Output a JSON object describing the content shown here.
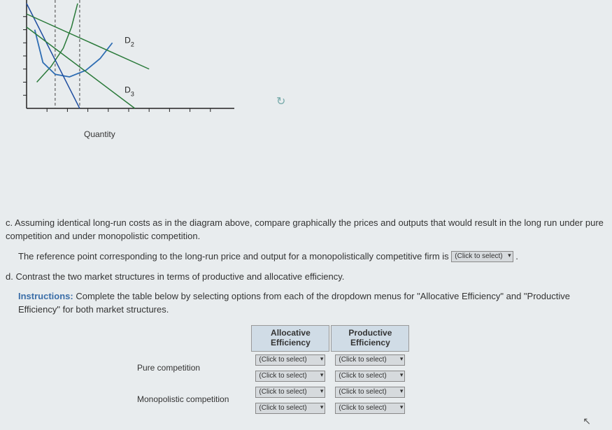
{
  "chart": {
    "type": "line",
    "x_axis_label": "Quantity",
    "xlim": [
      0,
      10
    ],
    "ylim": [
      0,
      8
    ],
    "axis_color": "#222222",
    "background_color": "#e8ecee",
    "tick_count_x": 9,
    "tick_count_y": 7,
    "curves": [
      {
        "name": "MC_rising",
        "color": "#2a7a3a",
        "width": 1.5,
        "points": [
          [
            0.5,
            2.0
          ],
          [
            1.2,
            3.2
          ],
          [
            1.8,
            4.6
          ],
          [
            2.2,
            6.2
          ],
          [
            2.5,
            8.0
          ]
        ]
      },
      {
        "name": "ATC_U",
        "color": "#2e6db3",
        "width": 1.8,
        "points": [
          [
            0.4,
            6.0
          ],
          [
            0.8,
            3.5
          ],
          [
            1.4,
            2.6
          ],
          [
            2.1,
            2.4
          ],
          [
            2.9,
            2.9
          ],
          [
            3.6,
            3.8
          ],
          [
            4.2,
            5.0
          ]
        ]
      },
      {
        "name": "D1",
        "color": "#1f4da0",
        "width": 1.5,
        "points": [
          [
            0.0,
            8.0
          ],
          [
            2.6,
            0.0
          ]
        ]
      },
      {
        "name": "D2",
        "color": "#2a7a3a",
        "width": 1.5,
        "label": "D",
        "sub": "2",
        "label_at": [
          4.8,
          5.0
        ],
        "points": [
          [
            0.0,
            7.2
          ],
          [
            6.0,
            3.0
          ]
        ]
      },
      {
        "name": "D3",
        "color": "#2a7a3a",
        "width": 1.5,
        "label": "D",
        "sub": "3",
        "label_at": [
          4.8,
          1.2
        ],
        "points": [
          [
            0.0,
            6.2
          ],
          [
            5.3,
            0.0
          ]
        ]
      }
    ],
    "dashed_verticals": [
      {
        "x": 1.4,
        "color": "#444444"
      },
      {
        "x": 2.6,
        "color": "#444444"
      }
    ],
    "label_fontsize": 12
  },
  "question_c": {
    "text_1": "c. Assuming identical long-run costs as in the diagram above, compare graphically the prices and outputs that would result in the long run under pure competition and under monopolistic competition.",
    "text_2_pre": "The reference point corresponding to the long-run price and output for a monopolistically competitive firm is ",
    "dropdown_placeholder": "(Click to select)",
    "text_2_post": "."
  },
  "question_d": {
    "text": "d. Contrast the two market structures in terms of productive and allocative efficiency."
  },
  "instructions": {
    "label": "Instructions:",
    "text": " Complete the table below by selecting options from each of the dropdown menus for \"Allocative Efficiency\" and \"Productive Efficiency\" for both market structures."
  },
  "table": {
    "col1": "Allocative\nEfficiency",
    "col2": "Productive\nEfficiency",
    "rows": [
      {
        "label": "Pure competition",
        "c1": "(Click to select)",
        "c2": "(Click to select)",
        "c3": "(Click to select)",
        "c4": "(Click to select)"
      },
      {
        "label": "Monopolistic competition",
        "c1": "(Click to select)",
        "c2": "(Click to select)",
        "c3": "(Click to select)",
        "c4": "(Click to select)"
      }
    ]
  }
}
